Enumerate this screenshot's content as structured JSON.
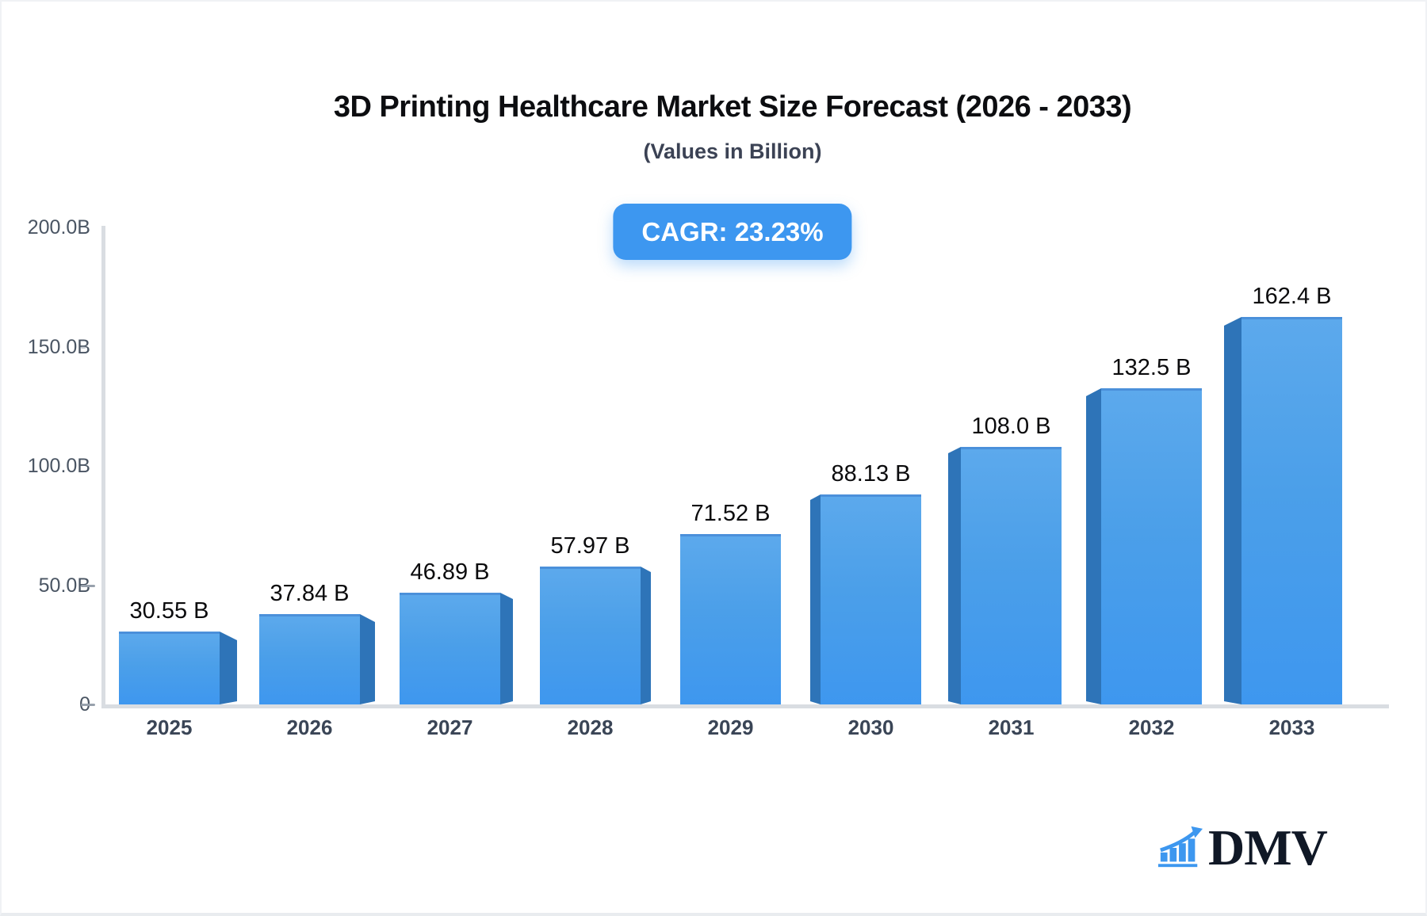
{
  "header": {
    "title": "3D Printing Healthcare Market Size Forecast (2026 - 2033)",
    "subtitle": "(Values in Billion)",
    "cagr_badge": "CAGR: 23.23%"
  },
  "chart_data": {
    "type": "bar",
    "title": "3D Printing Healthcare Market Size Forecast (2026 - 2033)",
    "subtitle": "(Values in Billion)",
    "annotation": "CAGR: 23.23%",
    "categories": [
      "2025",
      "2026",
      "2027",
      "2028",
      "2029",
      "2030",
      "2031",
      "2032",
      "2033"
    ],
    "values": [
      30.55,
      37.84,
      46.89,
      57.97,
      71.52,
      88.13,
      108.0,
      132.5,
      162.4
    ],
    "bar_labels": [
      "30.55 B",
      "37.84 B",
      "46.89 B",
      "57.97 B",
      "71.52 B",
      "88.13 B",
      "108.0 B",
      "132.5 B",
      "162.4 B"
    ],
    "unit": "B",
    "xlabel": "",
    "ylabel": "",
    "ylim": [
      0,
      200
    ],
    "grid": false,
    "legend": "none",
    "y_ticks": [
      {
        "label": "0",
        "value": 0
      },
      {
        "label": "50.0B",
        "value": 50
      },
      {
        "label": "100.0B",
        "value": 100
      },
      {
        "label": "150.0B",
        "value": 150
      },
      {
        "label": "200.0B",
        "value": 200
      }
    ],
    "colors": {
      "bar_front_top": "#5ca9ec",
      "bar_front_bottom": "#3e97ef",
      "bar_side": "#2e74b8",
      "bar_top_edge": "#4b90da",
      "axis": "#d9dde2",
      "badge": "#3d97f0"
    }
  },
  "logo": {
    "text": "DMV",
    "icon": "rising-bar-chart-arrow-icon",
    "icon_color": "#3d97ef",
    "text_color": "#101826"
  }
}
